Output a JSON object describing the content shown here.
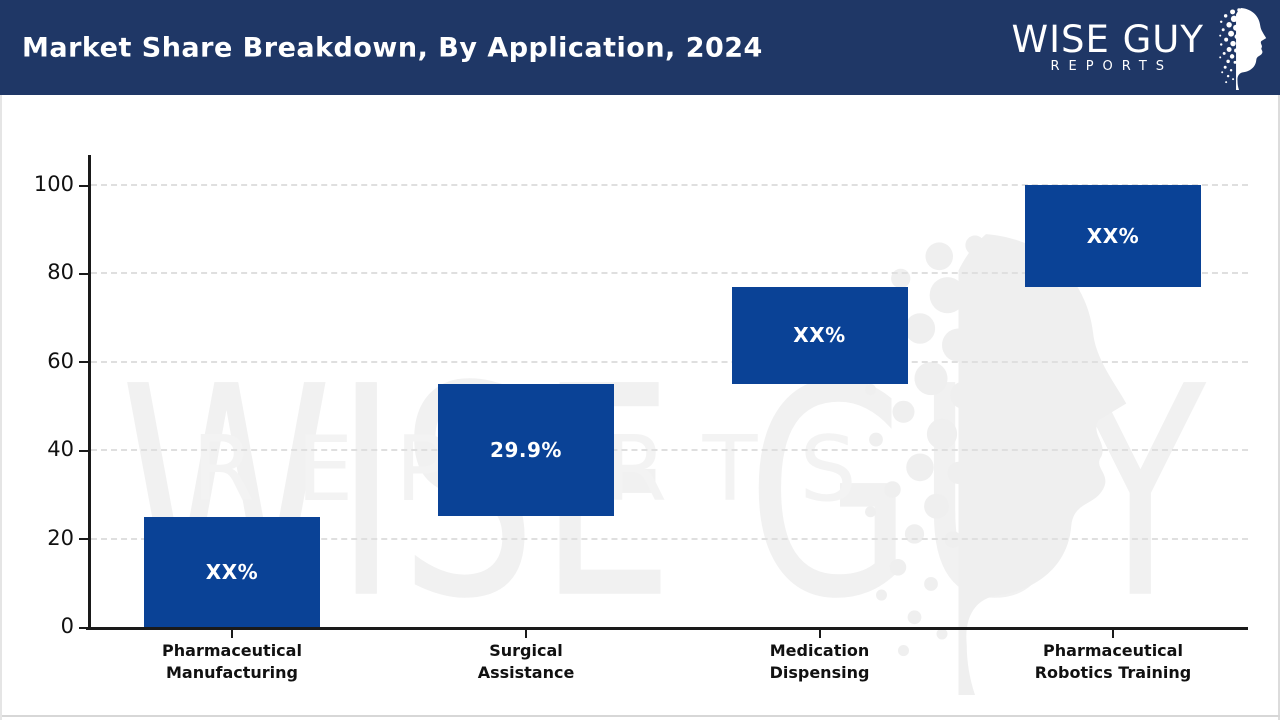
{
  "header": {
    "title": "Market Share Breakdown, By Application, 2024",
    "logo": {
      "brand_line1": "WISE GUY",
      "brand_line2": "REPORTS",
      "icon": "dotted-head-profile-icon"
    }
  },
  "watermark": {
    "line1": "WISE GUY",
    "line2": "REPORTS",
    "icon": "dotted-head-profile-icon"
  },
  "chart_data": {
    "type": "bar",
    "subtype": "floating-waterfall",
    "title": "Market Share Breakdown, By Application, 2024",
    "categories": [
      [
        "Pharmaceutical",
        "Manufacturing"
      ],
      [
        "Surgical",
        "Assistance"
      ],
      [
        "Medication",
        "Dispensing"
      ],
      [
        "Pharmaceutical",
        "Robotics Training"
      ]
    ],
    "segments": [
      {
        "category": "Pharmaceutical Manufacturing",
        "start": 0,
        "end": 25,
        "label": "XX%"
      },
      {
        "category": "Surgical Assistance",
        "start": 25,
        "end": 54.9,
        "label": "29.9%"
      },
      {
        "category": "Medication Dispensing",
        "start": 54.9,
        "end": 77,
        "label": "XX%"
      },
      {
        "category": "Pharmaceutical Robotics Training",
        "start": 77,
        "end": 100,
        "label": "XX%"
      }
    ],
    "xlabel": "",
    "ylabel": "",
    "ylim": [
      0,
      100
    ],
    "yticks": [
      0,
      20,
      40,
      60,
      80,
      100
    ],
    "grid": "dashed-horizontal",
    "legend": "none",
    "bar_color": "#0a4296",
    "bar_label_color": "#ffffff"
  },
  "colors": {
    "header_bg": "#1f3766",
    "header_text": "#ffffff",
    "bar_fill": "#0a4296",
    "axis": "#1a1a1a",
    "grid_line": "#dfdfdf",
    "watermark": "#f1f1f1",
    "bottom_rule": "#d7d7d7",
    "background": "#ffffff"
  }
}
